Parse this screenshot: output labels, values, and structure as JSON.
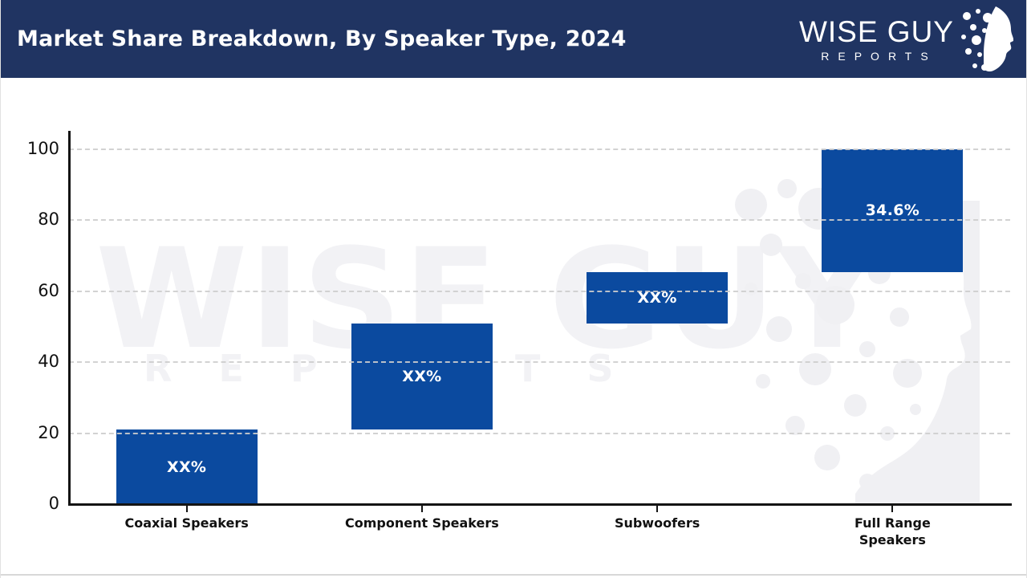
{
  "header": {
    "title": "Market Share Breakdown, By Speaker Type, 2024",
    "bg_color": "#203462",
    "logo": {
      "line1": "WISE GUY",
      "line2": "REPORTS"
    }
  },
  "watermark": {
    "line1": "WISE GUY",
    "line2": "REPORTS"
  },
  "chart_data": {
    "type": "bar",
    "subtype": "floating-stacked-breakdown",
    "title": "Market Share Breakdown, By Speaker Type, 2024",
    "categories": [
      "Coaxial Speakers",
      "Component Speakers",
      "Subwoofers",
      "Full Range Speakers"
    ],
    "category_label_lines": [
      [
        "Coaxial Speakers"
      ],
      [
        "Component Speakers"
      ],
      [
        "Subwoofers"
      ],
      [
        "Full Range",
        "Speakers"
      ]
    ],
    "bars": [
      {
        "category": "Coaxial Speakers",
        "start": 0,
        "end": 21,
        "label": "XX%"
      },
      {
        "category": "Component Speakers",
        "start": 21,
        "end": 51,
        "label": "XX%"
      },
      {
        "category": "Subwoofers",
        "start": 51,
        "end": 65.4,
        "label": "XX%"
      },
      {
        "category": "Full Range Speakers",
        "start": 65.4,
        "end": 100,
        "label": "34.6%"
      }
    ],
    "yticks": [
      0,
      20,
      40,
      60,
      80,
      100
    ],
    "ylim": [
      0,
      105
    ],
    "xlabel": "",
    "ylabel": "",
    "grid": "horizontal-dashed",
    "legend": "none",
    "bar_color": "#0b4a9f",
    "bar_label_color": "#ffffff",
    "axis_color": "#141414",
    "gridline_color": "#d9d9d9"
  }
}
